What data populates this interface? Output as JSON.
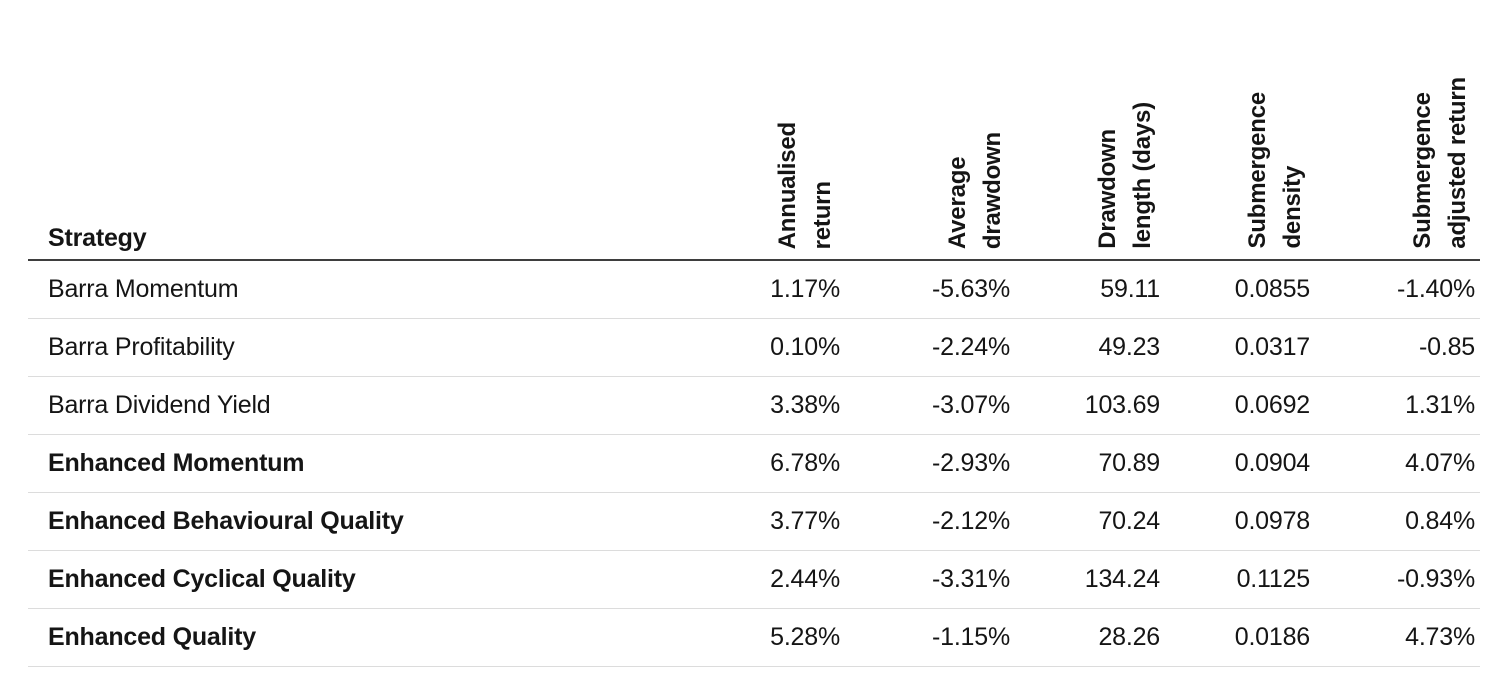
{
  "colors": {
    "background": "#ffffff",
    "text": "#151515",
    "header_rule": "#3e3e3e",
    "row_rule": "#dcdcdc"
  },
  "chart_data": {
    "type": "table",
    "columns": [
      {
        "key": "strategy",
        "label": "Strategy"
      },
      {
        "key": "annualised_return",
        "label": "Annualised\nreturn"
      },
      {
        "key": "average_drawdown",
        "label": "Average\ndrawdown"
      },
      {
        "key": "drawdown_length_days",
        "label": "Drawdown\nlength (days)"
      },
      {
        "key": "submergence_density",
        "label": "Submergence\ndensity"
      },
      {
        "key": "submergence_adjusted_return",
        "label": "Submergence\nadjusted return"
      }
    ],
    "rows": [
      {
        "strategy": "Barra Momentum",
        "bold": false,
        "annualised_return": "1.17%",
        "average_drawdown": "-5.63%",
        "drawdown_length_days": "59.11",
        "submergence_density": "0.0855",
        "submergence_adjusted_return": "-1.40%"
      },
      {
        "strategy": "Barra Profitability",
        "bold": false,
        "annualised_return": "0.10%",
        "average_drawdown": "-2.24%",
        "drawdown_length_days": "49.23",
        "submergence_density": "0.0317",
        "submergence_adjusted_return": "-0.85"
      },
      {
        "strategy": "Barra Dividend Yield",
        "bold": false,
        "annualised_return": "3.38%",
        "average_drawdown": "-3.07%",
        "drawdown_length_days": "103.69",
        "submergence_density": "0.0692",
        "submergence_adjusted_return": "1.31%"
      },
      {
        "strategy": "Enhanced Momentum",
        "bold": true,
        "annualised_return": "6.78%",
        "average_drawdown": "-2.93%",
        "drawdown_length_days": "70.89",
        "submergence_density": "0.0904",
        "submergence_adjusted_return": "4.07%"
      },
      {
        "strategy": "Enhanced Behavioural Quality",
        "bold": true,
        "annualised_return": "3.77%",
        "average_drawdown": "-2.12%",
        "drawdown_length_days": "70.24",
        "submergence_density": "0.0978",
        "submergence_adjusted_return": "0.84%"
      },
      {
        "strategy": "Enhanced Cyclical Quality",
        "bold": true,
        "annualised_return": "2.44%",
        "average_drawdown": "-3.31%",
        "drawdown_length_days": "134.24",
        "submergence_density": "0.1125",
        "submergence_adjusted_return": "-0.93%"
      },
      {
        "strategy": "Enhanced Quality",
        "bold": true,
        "annualised_return": "5.28%",
        "average_drawdown": "-1.15%",
        "drawdown_length_days": "28.26",
        "submergence_density": "0.0186",
        "submergence_adjusted_return": "4.73%"
      }
    ]
  }
}
